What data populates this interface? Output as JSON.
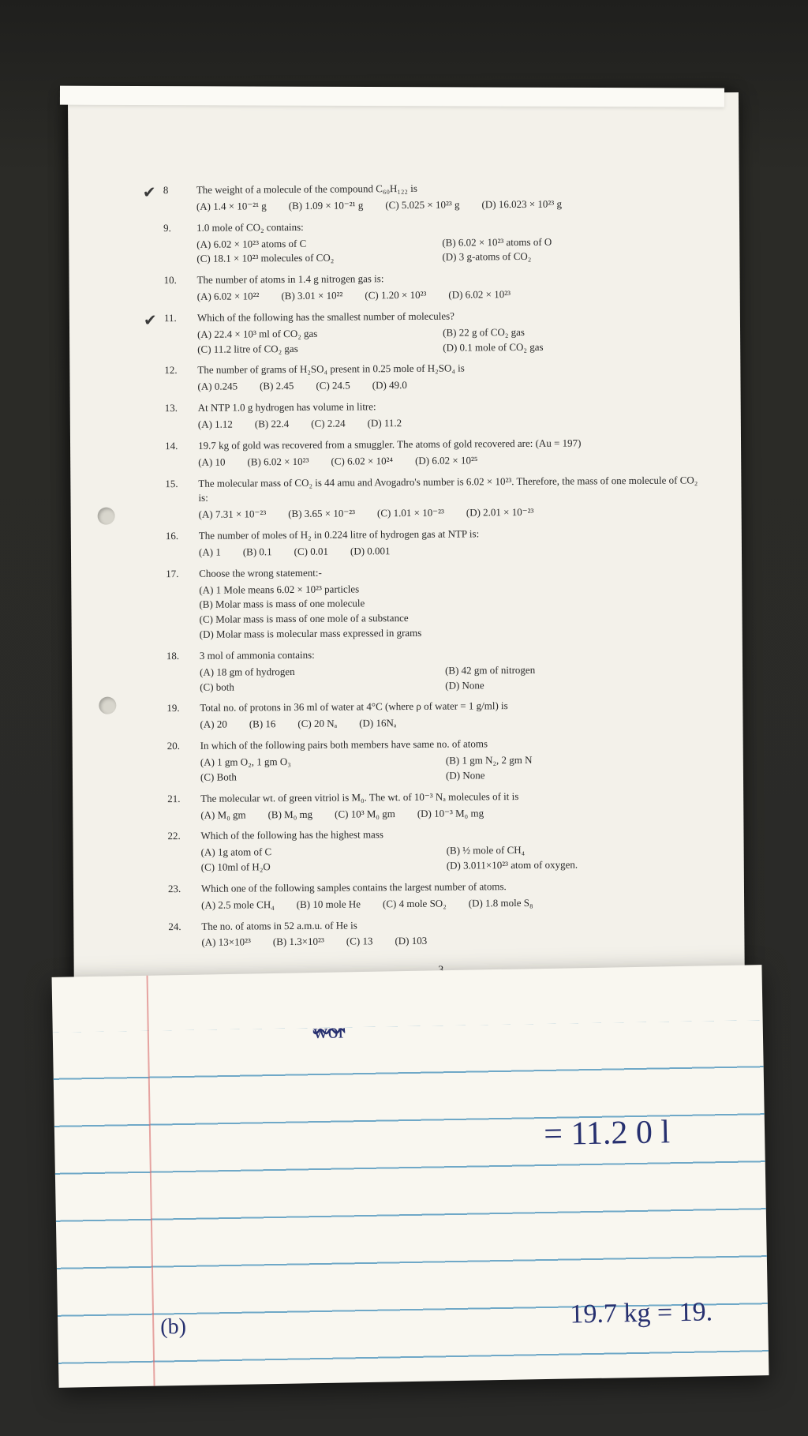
{
  "page_number": "3",
  "tick_marks": {
    "q8": "8",
    "q11": "11."
  },
  "handwriting": {
    "scratch": "wor",
    "val11": "= 11.2 0 l",
    "label_b": "(b)",
    "val19": "19.7 kg = 19."
  },
  "questions": [
    {
      "n": "8",
      "ticked": true,
      "text": "The weight of a molecule of the compound C₆₀H₁₂₂ is",
      "opts": [
        "(A) 1.4 × 10⁻²¹ g",
        "(B) 1.09 × 10⁻²¹ g",
        "(C) 5.025 × 10²³ g",
        "(D) 16.023 × 10²³ g"
      ],
      "cols": 4
    },
    {
      "n": "9.",
      "text": "1.0 mole of CO₂ contains:",
      "opts": [
        "(A) 6.02 × 10²³ atoms of C",
        "(B) 6.02 × 10²³ atoms of O",
        "(C) 18.1 × 10²³ molecules of CO₂",
        "(D) 3 g-atoms of CO₂"
      ],
      "cols": 2
    },
    {
      "n": "10.",
      "text": "The number of atoms in 1.4 g nitrogen gas is:",
      "opts": [
        "(A) 6.02 × 10²²",
        "(B) 3.01 × 10²²",
        "(C) 1.20 × 10²³",
        "(D) 6.02 × 10²³"
      ],
      "cols": 4
    },
    {
      "n": "11.",
      "ticked": true,
      "text": "Which of the following has the smallest number of molecules?",
      "opts": [
        "(A) 22.4 × 10³ ml of CO₂ gas",
        "(B) 22 g of CO₂ gas",
        "(C) 11.2 litre of CO₂ gas",
        "(D) 0.1 mole of CO₂ gas"
      ],
      "cols": 2
    },
    {
      "n": "12.",
      "text": "The number of grams of H₂SO₄ present in 0.25 mole of H₂SO₄ is",
      "opts": [
        "(A) 0.245",
        "(B) 2.45",
        "(C) 24.5",
        "(D) 49.0"
      ],
      "cols": 4
    },
    {
      "n": "13.",
      "text": "At NTP 1.0 g hydrogen has volume in litre:",
      "opts": [
        "(A) 1.12",
        "(B) 22.4",
        "(C) 2.24",
        "(D) 11.2"
      ],
      "cols": 4
    },
    {
      "n": "14.",
      "text": "19.7 kg of gold was recovered from a smuggler. The atoms of gold recovered are: (Au = 197)",
      "opts": [
        "(A) 10",
        "(B) 6.02 × 10²³",
        "(C) 6.02 × 10²⁴",
        "(D) 6.02 × 10²⁵"
      ],
      "cols": 4
    },
    {
      "n": "15.",
      "text": "The molecular mass of CO₂ is 44 amu and Avogadro's number is 6.02 × 10²³. Therefore, the mass of one molecule of CO₂ is:",
      "opts": [
        "(A) 7.31 × 10⁻²³",
        "(B) 3.65 × 10⁻²³",
        "(C) 1.01 × 10⁻²³",
        "(D) 2.01 × 10⁻²³"
      ],
      "cols": 4
    },
    {
      "n": "16.",
      "text": "The number of moles of H₂ in 0.224 litre of hydrogen gas at NTP is:",
      "opts": [
        "(A) 1",
        "(B) 0.1",
        "(C) 0.01",
        "(D) 0.001"
      ],
      "cols": 4
    },
    {
      "n": "17.",
      "text": "Choose the wrong statement:-",
      "opts": [
        "(A) 1 Mole means 6.02 × 10²³ particles",
        "(B) Molar mass is mass of one molecule",
        "(C) Molar mass is mass of one mole of a substance",
        "(D) Molar mass is molecular mass expressed in grams"
      ],
      "cols": 1
    },
    {
      "n": "18.",
      "text": "3 mol of ammonia contains:",
      "opts": [
        "(A) 18 gm of hydrogen",
        "(B) 42 gm of nitrogen",
        "(C) both",
        "(D) None"
      ],
      "cols": 2
    },
    {
      "n": "19.",
      "text": "Total no. of protons in 36 ml of water at 4°C (where ρ of water = 1 g/ml) is",
      "opts": [
        "(A) 20",
        "(B) 16",
        "(C) 20 Nₐ",
        "(D) 16Nₐ"
      ],
      "cols": 4
    },
    {
      "n": "20.",
      "text": "In which of the following pairs both members have same no. of atoms",
      "opts": [
        "(A) 1 gm O₂, 1 gm O₃",
        "(B) 1 gm N₂, 2 gm N",
        "(C) Both",
        "(D) None"
      ],
      "cols": 2
    },
    {
      "n": "21.",
      "text": "The molecular wt. of green vitriol is M₀. The wt. of 10⁻³ Nₐ molecules of it is",
      "opts": [
        "(A) M₀ gm",
        "(B) M₀ mg",
        "(C) 10³ M₀ gm",
        "(D) 10⁻³ M₀ mg"
      ],
      "cols": 4
    },
    {
      "n": "22.",
      "text": "Which of the following has the highest mass",
      "opts": [
        "(A) 1g atom of C",
        "(B) ½ mole of CH₄",
        "(C) 10ml of H₂O",
        "(D) 3.011×10²³ atom of oxygen."
      ],
      "cols": 2
    },
    {
      "n": "23.",
      "text": "Which one of the following samples contains the largest number of atoms.",
      "opts": [
        "(A) 2.5 mole CH₄",
        "(B) 10 mole He",
        "(C) 4 mole SO₂",
        "(D) 1.8 mole S₈"
      ],
      "cols": 4
    },
    {
      "n": "24.",
      "text": "The no. of atoms in 52 a.m.u. of He is",
      "opts": [
        "(A) 13×10²³",
        "(B) 1.3×10²³",
        "(C) 13",
        "(D) 103"
      ],
      "cols": 4
    }
  ]
}
